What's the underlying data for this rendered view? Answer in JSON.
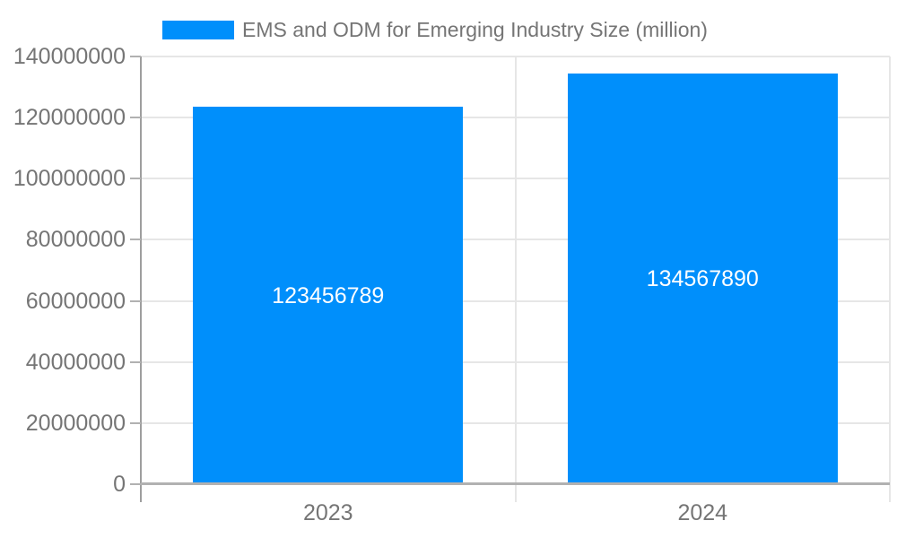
{
  "chart_data": {
    "type": "bar",
    "title": "EMS and ODM for Emerging Industry Size (million)",
    "legend": {
      "position": "top",
      "entries": [
        "EMS and ODM for Emerging Industry Size (million)"
      ]
    },
    "categories": [
      "2023",
      "2024"
    ],
    "series": [
      {
        "name": "EMS and ODM for Emerging Industry Size (million)",
        "values": [
          123456789,
          134567890
        ]
      }
    ],
    "data_labels": [
      "123456789",
      "134567890"
    ],
    "xlabel": "",
    "ylabel": "",
    "ylim": [
      0,
      140000000
    ],
    "ytick_step": 20000000,
    "yticks": [
      {
        "value": 0,
        "label": "0"
      },
      {
        "value": 20000000,
        "label": "20000000"
      },
      {
        "value": 40000000,
        "label": "40000000"
      },
      {
        "value": 60000000,
        "label": "60000000"
      },
      {
        "value": 80000000,
        "label": "80000000"
      },
      {
        "value": 100000000,
        "label": "100000000"
      },
      {
        "value": 120000000,
        "label": "120000000"
      },
      {
        "value": 140000000,
        "label": "140000000"
      }
    ],
    "grid": true,
    "colors": {
      "bar": "#008FFB",
      "legend_swatch": "#008FFB",
      "axis_text": "#757575",
      "title_text": "#757575",
      "data_label_text": "#FFFFFF",
      "gridline": "#E6E6E6",
      "axis_line": "#9E9E9E",
      "baseline": "#B1B1B1",
      "background": "#FFFFFF"
    }
  }
}
